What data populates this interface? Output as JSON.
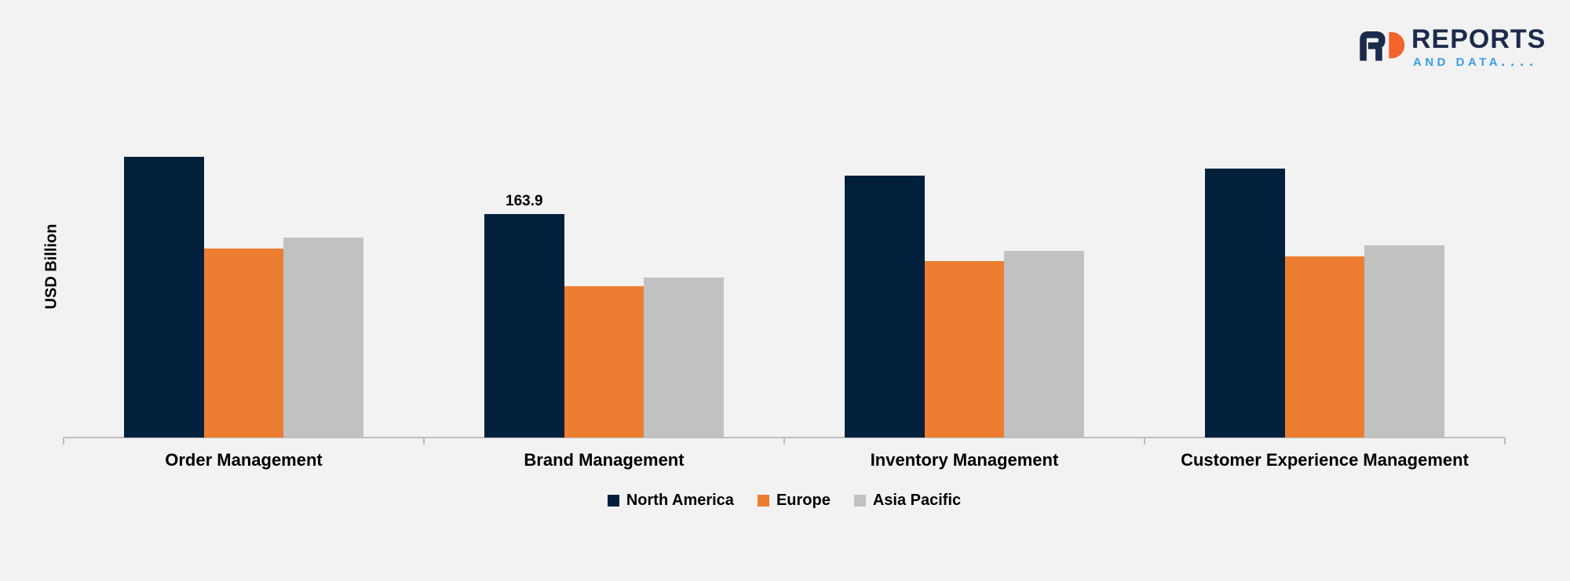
{
  "page": {
    "background": "#f2f2f2"
  },
  "logo": {
    "mark": "RD",
    "title": "REPORTS",
    "subtitle": "AND DATA",
    "dots": "....",
    "navy": "#1b2b4c",
    "orange": "#f4632a",
    "blue": "#38a0e4"
  },
  "chart_data": {
    "type": "bar",
    "title": "",
    "xlabel": "",
    "ylabel": "USD Billion",
    "categories": [
      "Order Management",
      "Brand Management",
      "Inventory Management",
      "Customer Experience Management"
    ],
    "series": [
      {
        "name": "North America",
        "color": "#02203c",
        "values": [
          205.9,
          163.9,
          192.1,
          197.2
        ]
      },
      {
        "name": "Europe",
        "color": "#ed7d31",
        "values": [
          138.6,
          111.0,
          129.4,
          132.8
        ]
      },
      {
        "name": "Asia Pacific",
        "color": "#c1c1c1",
        "values": [
          146.6,
          117.3,
          136.9,
          140.9
        ]
      }
    ],
    "data_labels": [
      {
        "series": "North America",
        "category": "Brand Management",
        "text": "163.9"
      }
    ],
    "ylim": [
      0,
      240
    ],
    "grid": false,
    "legend_position": "bottom",
    "axis_color": "#bdbdbd"
  }
}
